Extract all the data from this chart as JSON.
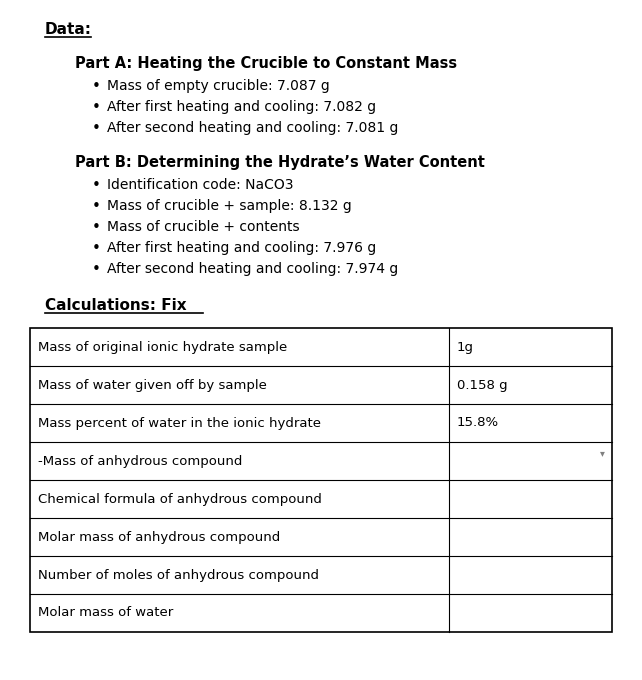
{
  "title": "Data:",
  "part_a_header": "Part A: Heating the Crucible to Constant Mass",
  "part_a_bullets": [
    "Mass of empty crucible: 7.087 g",
    "After first heating and cooling: 7.082 g",
    "After second heating and cooling: 7.081 g"
  ],
  "part_b_header": "Part B: Determining the Hydrate’s Water Content",
  "part_b_bullets": [
    "Identification code: NaCO3",
    "Mass of crucible + sample: 8.132 g",
    "Mass of crucible + contents",
    "After first heating and cooling: 7.976 g",
    "After second heating and cooling: 7.974 g"
  ],
  "calc_header": "Calculations: Fix",
  "table_rows": [
    [
      "Mass of original ionic hydrate sample",
      "1g"
    ],
    [
      "Mass of water given off by sample",
      "0.158 g"
    ],
    [
      "Mass percent of water in the ionic hydrate",
      "15.8%"
    ],
    [
      "-Mass of anhydrous compound",
      ""
    ],
    [
      "Chemical formula of anhydrous compound",
      ""
    ],
    [
      "Molar mass of anhydrous compound",
      ""
    ],
    [
      "Number of moles of anhydrous compound",
      ""
    ],
    [
      "Molar mass of water",
      ""
    ]
  ],
  "bg_color": "#ffffff",
  "text_color": "#000000",
  "font_size_title": 11,
  "font_size_header": 10.5,
  "font_size_body": 10,
  "font_size_table": 9.5,
  "table_col_split": 0.72
}
